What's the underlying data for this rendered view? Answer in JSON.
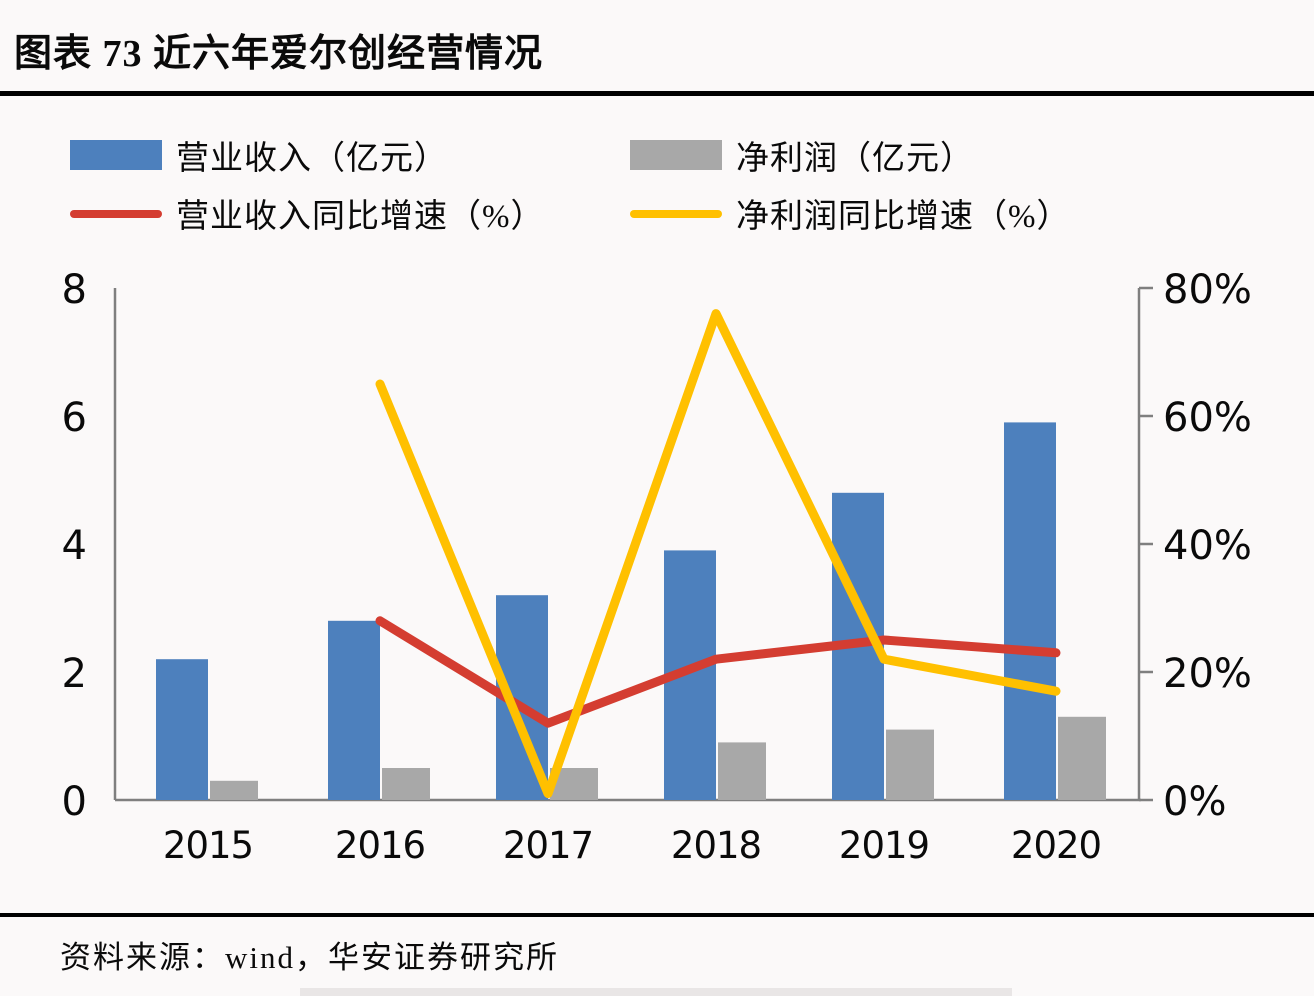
{
  "title": "图表 73 近六年爱尔创经营情况",
  "footer": {
    "source": "资料来源：wind，华安证券研究所"
  },
  "chart_data": {
    "type": "bar",
    "subtype": "bar-line-combo",
    "categories": [
      "2015",
      "2016",
      "2017",
      "2018",
      "2019",
      "2020"
    ],
    "series": [
      {
        "name": "营业收入（亿元）",
        "type": "bar",
        "axis": "left",
        "color": "#4d80bd",
        "values": [
          2.2,
          2.8,
          3.2,
          3.9,
          4.8,
          5.9
        ]
      },
      {
        "name": "净利润（亿元）",
        "type": "bar",
        "axis": "left",
        "color": "#a8a8a8",
        "values": [
          0.3,
          0.5,
          0.5,
          0.9,
          1.1,
          1.3
        ]
      },
      {
        "name": "营业收入同比增速（%）",
        "type": "line",
        "axis": "right",
        "color": "#d43d31",
        "values": [
          null,
          28,
          12,
          22,
          25,
          23
        ]
      },
      {
        "name": "净利润同比增速（%）",
        "type": "line",
        "axis": "right",
        "color": "#ffc000",
        "values": [
          null,
          65,
          1,
          76,
          22,
          17
        ]
      }
    ],
    "left_axis": {
      "min": 0,
      "max": 8,
      "tick_labels": [
        "8",
        "6",
        "4",
        "2",
        "0"
      ]
    },
    "right_axis": {
      "min": 0,
      "max": 80,
      "tick_labels": [
        "80%",
        "60%",
        "40%",
        "20%",
        "0%"
      ]
    },
    "legend_position": "top",
    "grid": false,
    "axis_color": "#7f7f7f"
  }
}
